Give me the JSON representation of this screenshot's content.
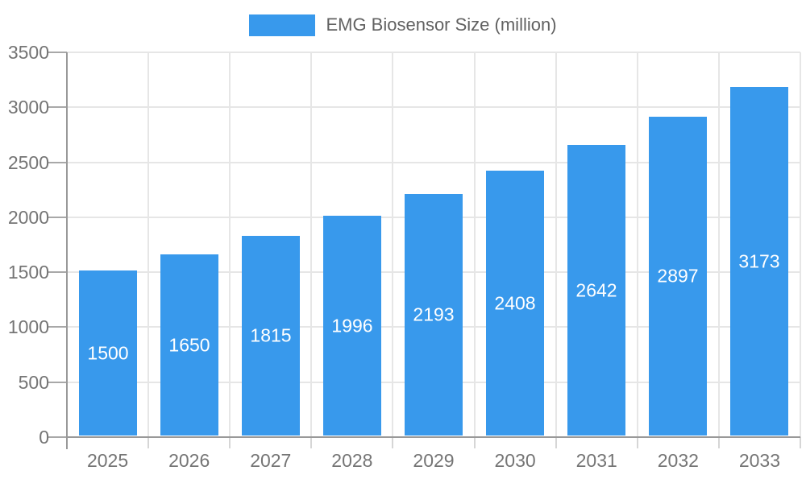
{
  "legend": {
    "label": "EMG Biosensor Size (million)"
  },
  "chart_data": {
    "type": "bar",
    "title": "",
    "series_name": "EMG Biosensor Size (million)",
    "categories": [
      "2025",
      "2026",
      "2027",
      "2028",
      "2029",
      "2030",
      "2031",
      "2032",
      "2033"
    ],
    "values": [
      1500,
      1650,
      1815,
      1996,
      2193,
      2408,
      2642,
      2897,
      3173
    ],
    "xlabel": "",
    "ylabel": "",
    "ylim": [
      0,
      3500
    ],
    "yticks": [
      0,
      500,
      1000,
      1500,
      2000,
      2500,
      3000,
      3500
    ],
    "grid": true,
    "legend_position": "top-center",
    "value_labels": "inside-center"
  },
  "colors": {
    "bar": "#3899EC",
    "value_label": "#FFFFFF",
    "axis": "#999999",
    "grid": "#E6E6E6",
    "y_tick": "#A8A8A8",
    "x_tick": "#D6D6D6",
    "tick_label": "#757575",
    "legend_label": "#616161",
    "background": "#FFFFFF"
  }
}
